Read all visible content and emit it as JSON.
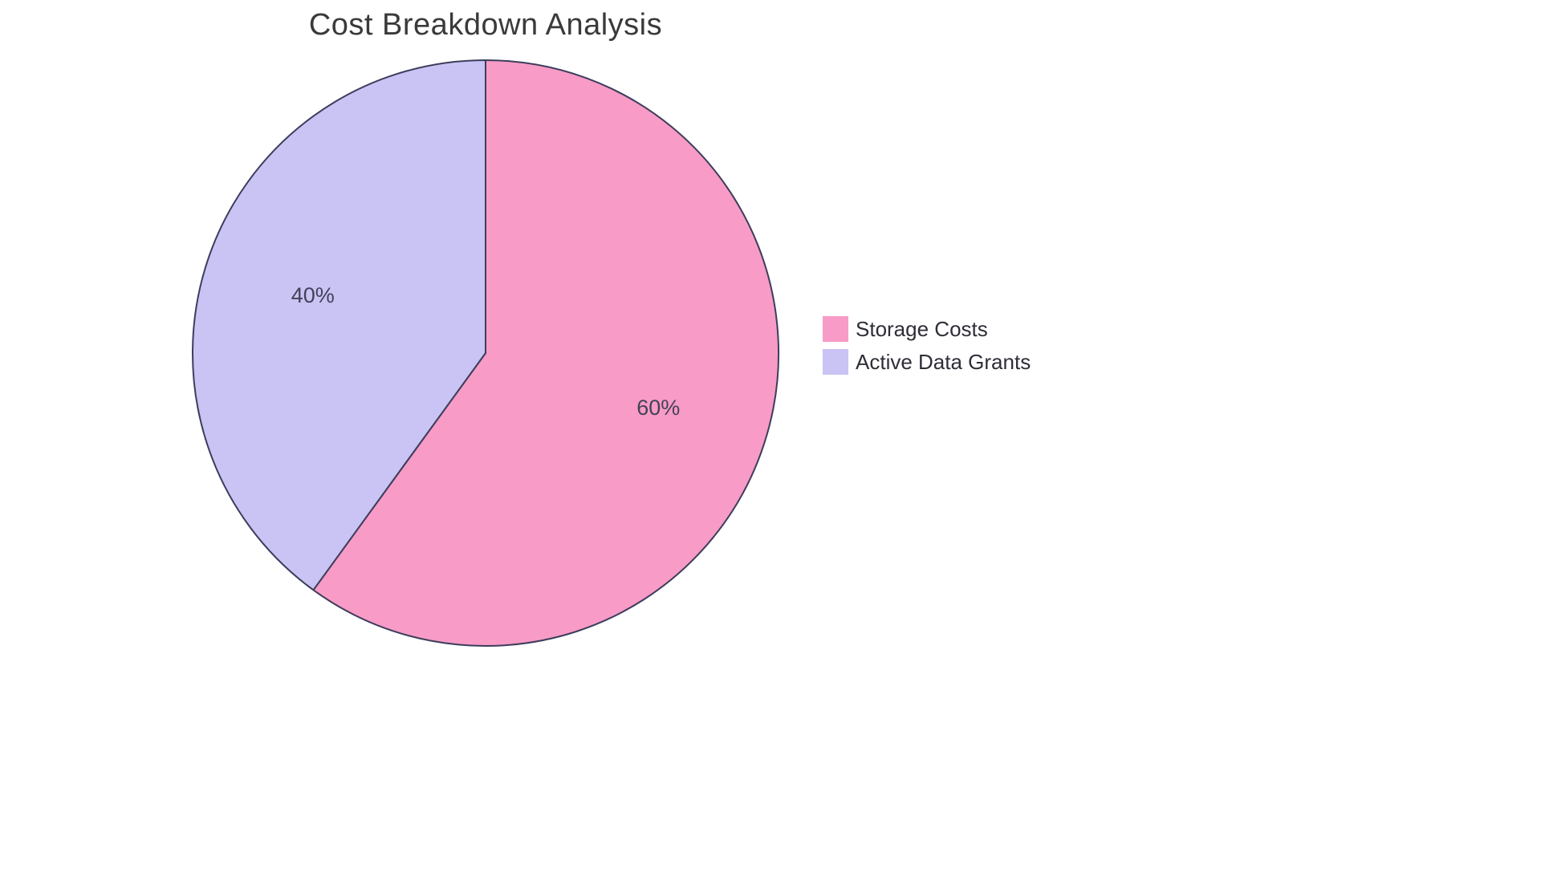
{
  "page": {
    "background_color": "#ffffff"
  },
  "chart_data": {
    "type": "pie",
    "title": "Cost Breakdown Analysis",
    "slices": [
      {
        "label": "Storage Costs",
        "value": 60,
        "percent_label": "60%",
        "color": "#F89BC6"
      },
      {
        "label": "Active Data Grants",
        "value": 40,
        "percent_label": "40%",
        "color": "#C9C4F4"
      }
    ],
    "start_angle_deg": -90,
    "direction": "clockwise",
    "stroke_color": "#3D3D5C",
    "stroke_width": 2,
    "label_color": "#424258",
    "title_color": "#3a3a3a",
    "legend_position": "right",
    "grid": false
  }
}
